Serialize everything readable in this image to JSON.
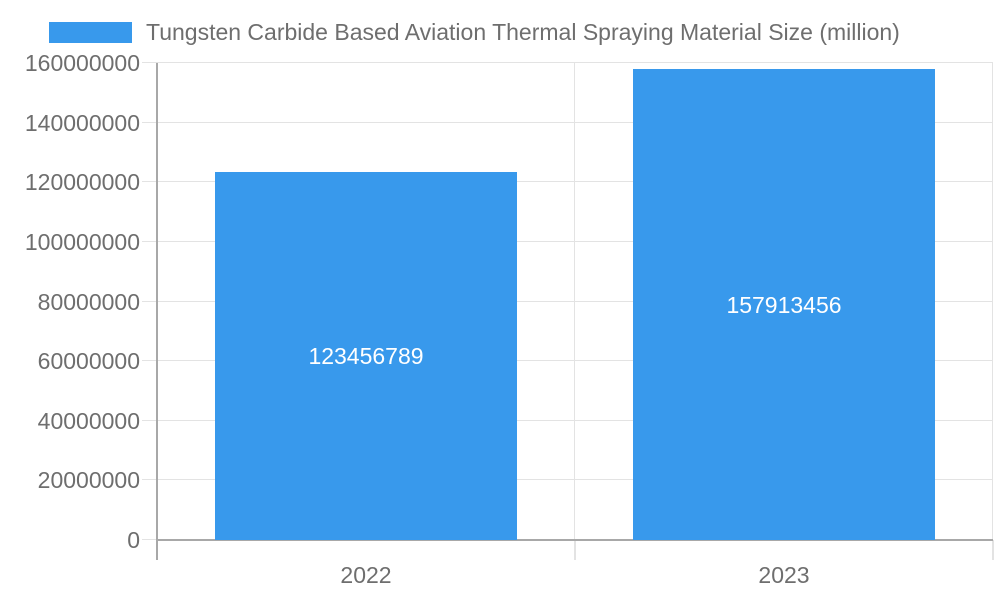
{
  "chart_data": {
    "type": "bar",
    "title": "Tungsten Carbide Based Aviation Thermal Spraying Material Size (million)",
    "legend_position": "top",
    "grid": true,
    "categories": [
      "2022",
      "2023"
    ],
    "series": [
      {
        "name": "Tungsten Carbide Based Aviation Thermal Spraying Material Size (million)",
        "values": [
          123456789,
          157913456
        ]
      }
    ],
    "bar_labels": [
      "123456789",
      "157913456"
    ],
    "xlabel": "",
    "ylabel": "",
    "ylim": [
      0,
      160000000
    ],
    "y_tick_step": 20000000,
    "y_ticks": [
      {
        "value": 0,
        "label": "0"
      },
      {
        "value": 20000000,
        "label": "20000000"
      },
      {
        "value": 40000000,
        "label": "40000000"
      },
      {
        "value": 60000000,
        "label": "60000000"
      },
      {
        "value": 80000000,
        "label": "80000000"
      },
      {
        "value": 100000000,
        "label": "100000000"
      },
      {
        "value": 120000000,
        "label": "120000000"
      },
      {
        "value": 140000000,
        "label": "140000000"
      },
      {
        "value": 160000000,
        "label": "160000000"
      }
    ],
    "colors": {
      "bar": "#3899ec",
      "text": "#6e6e6e",
      "grid": "#e3e3e3",
      "axis": "#a8a8a8",
      "bar_label": "#ffffff",
      "background": "#ffffff"
    }
  }
}
